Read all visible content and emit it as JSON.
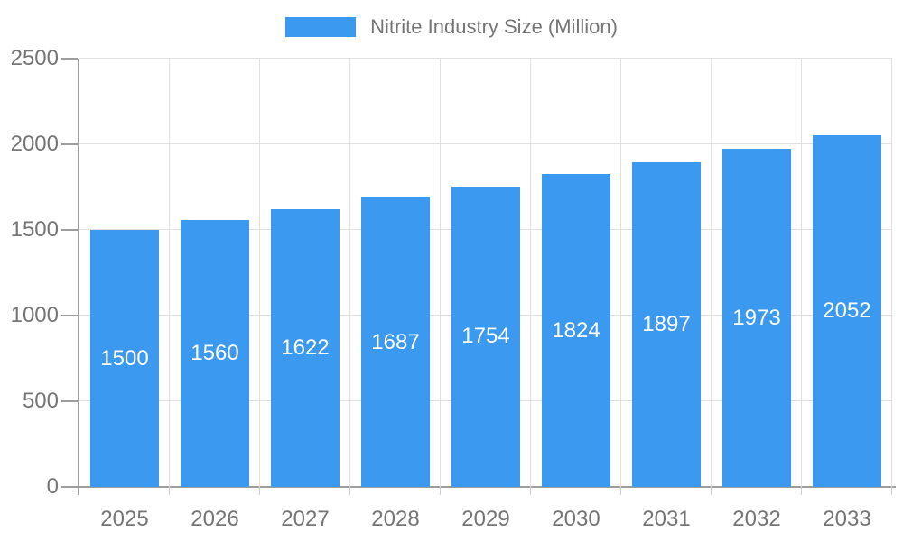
{
  "legend": {
    "items": [
      {
        "label": "Nitrite Industry Size (Million)",
        "color": "#3B99F0"
      }
    ],
    "position": "top-center"
  },
  "chart_data": {
    "type": "bar",
    "title": "Nitrite Industry Size (Million)",
    "categories": [
      "2025",
      "2026",
      "2027",
      "2028",
      "2029",
      "2030",
      "2031",
      "2032",
      "2033"
    ],
    "values": [
      1500,
      1560,
      1622,
      1687,
      1754,
      1824,
      1897,
      1973,
      2052
    ],
    "series_name": "Nitrite Industry Size (Million)",
    "xlabel": "",
    "ylabel": "",
    "ylim": [
      0,
      2500
    ],
    "yticks": [
      0,
      500,
      1000,
      1500,
      2000,
      2500
    ],
    "grid": true,
    "legend_position": "top-center",
    "value_labels": "inside-center-white"
  },
  "colors": {
    "bar": "#3B99F0",
    "legend_text": "#757575",
    "axis": "#9E9E9E",
    "grid": "#E0E0E0",
    "stub": "#CFCFCF",
    "tick_label": "#757575",
    "bar_label": "#FFFFFF",
    "background": "#FFFFFF"
  }
}
